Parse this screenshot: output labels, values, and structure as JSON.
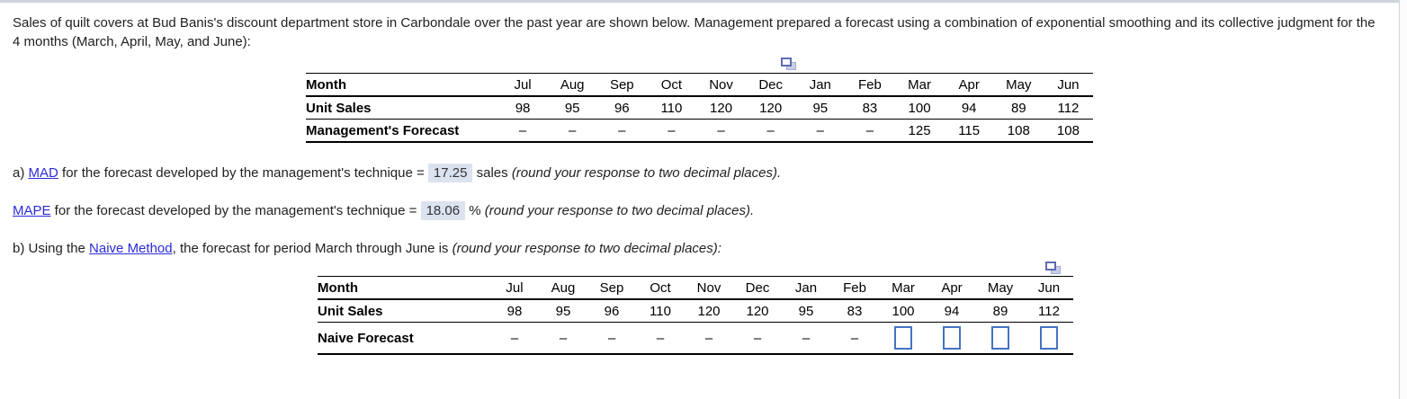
{
  "intro": {
    "text": "Sales of quilt covers at Bud Banis's discount department store in Carbondale over the past year are shown below.  Management prepared a forecast using a combination of exponential smoothing and its collective judgment for the 4 months (March, April, May, and June):"
  },
  "table1": {
    "header_label": "Month",
    "months": [
      "Jul",
      "Aug",
      "Sep",
      "Oct",
      "Nov",
      "Dec",
      "Jan",
      "Feb",
      "Mar",
      "Apr",
      "May",
      "Jun"
    ],
    "unit_sales_label": "Unit Sales",
    "unit_sales": [
      "98",
      "95",
      "96",
      "110",
      "120",
      "120",
      "95",
      "83",
      "100",
      "94",
      "89",
      "112"
    ],
    "forecast_label": "Management's Forecast",
    "forecast": [
      "–",
      "–",
      "–",
      "–",
      "–",
      "–",
      "–",
      "–",
      "125",
      "115",
      "108",
      "108"
    ]
  },
  "part_a": {
    "prefix": "a) ",
    "mad_link": "MAD",
    "mad_mid": " for the forecast developed by the management's technique = ",
    "mad_value": "17.25",
    "mad_after": " sales ",
    "mad_note": "(round your response to two decimal places).",
    "mape_link": "MAPE",
    "mape_mid": " for the forecast developed by the management's technique = ",
    "mape_value": "18.06",
    "mape_after": " % ",
    "mape_note": "(round your response to two decimal places)."
  },
  "part_b": {
    "prefix": "b) Using the ",
    "link": "Naive Method",
    "mid": ", the forecast for period March through June is ",
    "note": "(round your response to two decimal places):"
  },
  "table2": {
    "header_label": "Month",
    "months": [
      "Jul",
      "Aug",
      "Sep",
      "Oct",
      "Nov",
      "Dec",
      "Jan",
      "Feb",
      "Mar",
      "Apr",
      "May",
      "Jun"
    ],
    "unit_sales_label": "Unit Sales",
    "unit_sales": [
      "98",
      "95",
      "96",
      "110",
      "120",
      "120",
      "95",
      "83",
      "100",
      "94",
      "89",
      "112"
    ],
    "naive_label": "Naive Forecast",
    "naive": [
      "–",
      "–",
      "–",
      "–",
      "–",
      "–",
      "–",
      "–"
    ],
    "inputs": [
      "",
      "",
      "",
      ""
    ]
  },
  "icons": {
    "copy_table": "copy-table-icon"
  },
  "colors": {
    "link": "#2b2bd6",
    "answer_highlight": "#dbe3f1",
    "input_border": "#4573c4",
    "topbar": "#cdd4dc",
    "table_border": "#000000"
  }
}
